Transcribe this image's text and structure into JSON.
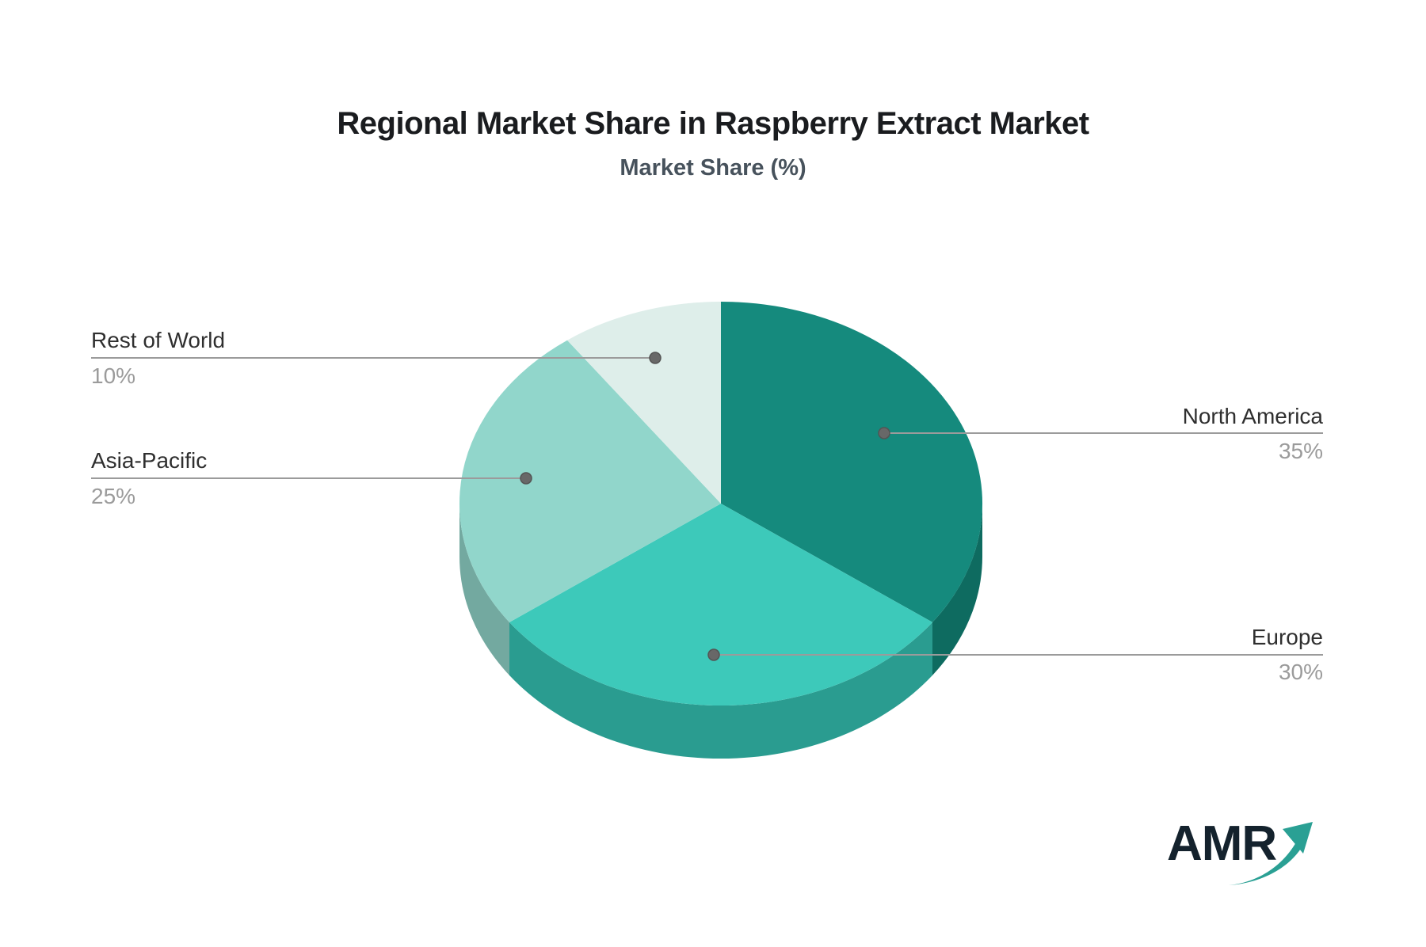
{
  "title": "Regional Market Share in Raspberry Extract Market",
  "subtitle": "Market Share (%)",
  "chart_data": {
    "type": "pie",
    "title": "Regional Market Share in Raspberry Extract Market",
    "subtitle": "Market Share (%)",
    "unit": "%",
    "effect": "3d",
    "start_angle_deg": 0,
    "direction": "clockwise",
    "labels": [
      "North America",
      "Europe",
      "Asia-Pacific",
      "Rest of World"
    ],
    "values": [
      35,
      30,
      25,
      10
    ],
    "colors": [
      "#158A7D",
      "#3DC9BA",
      "#91D6CB",
      "#DEEEEA"
    ],
    "side_colors": [
      "#0E6B60",
      "#2A9C90",
      "#73A9A0",
      "#C9E0DB"
    ],
    "leader_line_color": "#9b9b9b",
    "leader_dot_color": "#686868"
  },
  "callouts": {
    "rest_of_world": {
      "label": "Rest of World",
      "value_text": "10%"
    },
    "asia_pacific": {
      "label": "Asia-Pacific",
      "value_text": "25%"
    },
    "north_america": {
      "label": "North America",
      "value_text": "35%"
    },
    "europe": {
      "label": "Europe",
      "value_text": "30%"
    }
  },
  "logo": {
    "text": "AMR",
    "arrow_color": "#2AA094"
  }
}
